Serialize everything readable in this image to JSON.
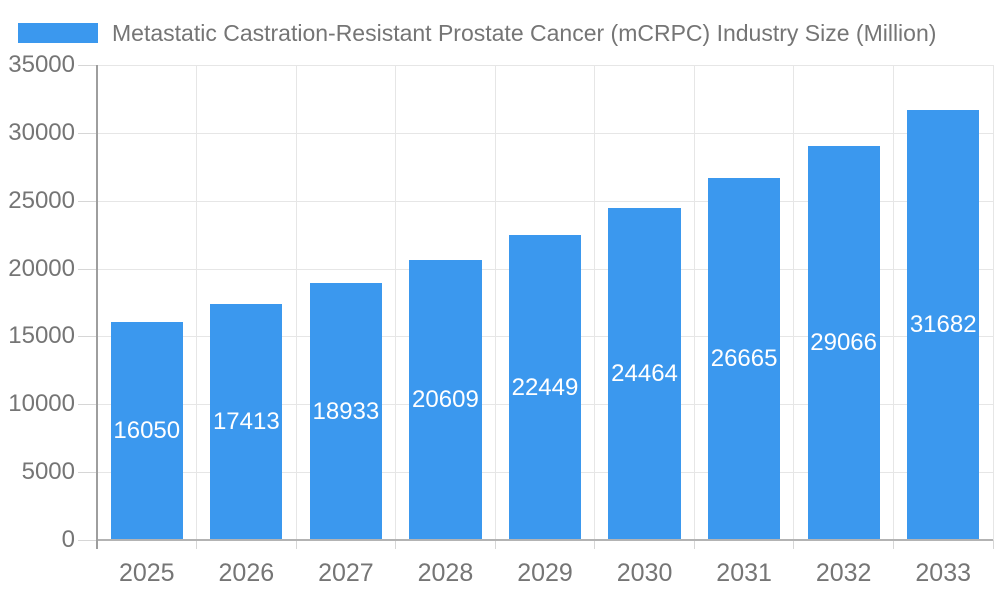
{
  "chart_data": {
    "type": "bar",
    "title": "Metastatic Castration-Resistant Prostate Cancer (mCRPC) Industry Size (Million)",
    "categories": [
      "2025",
      "2026",
      "2027",
      "2028",
      "2029",
      "2030",
      "2031",
      "2032",
      "2033"
    ],
    "values": [
      16050,
      17413,
      18933,
      20609,
      22449,
      24464,
      26665,
      29066,
      31682
    ],
    "xlabel": "",
    "ylabel": "",
    "ylim": [
      0,
      35000
    ],
    "ytick_step": 5000,
    "ytick_labels": [
      "0",
      "5000",
      "10000",
      "15000",
      "20000",
      "25000",
      "30000",
      "35000"
    ],
    "grid": true,
    "legend_position": "top-left",
    "value_labels": "inside-bar-centered",
    "colors": {
      "bar": "#3b98ee",
      "bar_value_text": "#ffffff",
      "label_text": "#757575",
      "gridline": "#e6e6e6",
      "tick": "#d6d6d6",
      "y_axis_line": "#9e9e9e",
      "x_axis_line": "#b3b3b3",
      "background": "#ffffff"
    }
  }
}
